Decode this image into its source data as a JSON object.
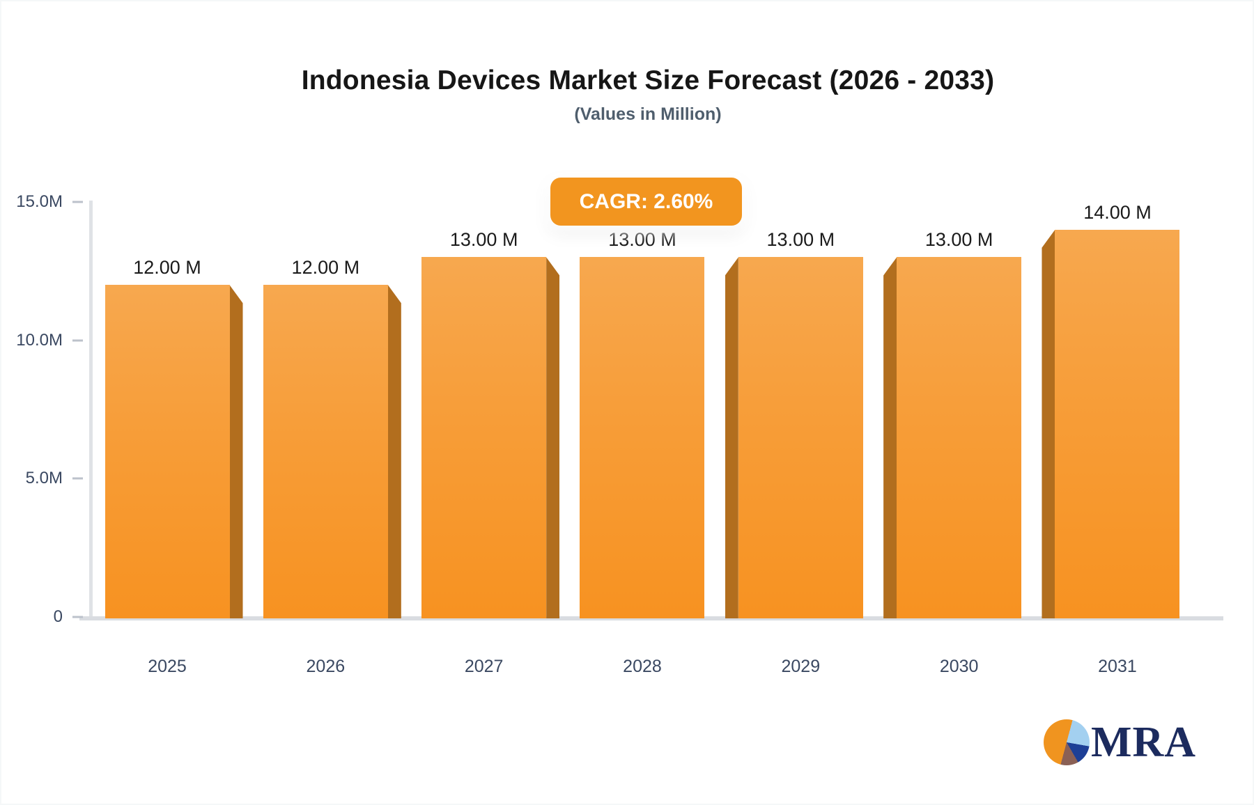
{
  "header": {
    "title": "Indonesia Devices Market Size Forecast (2026 - 2033)",
    "subtitle": "(Values in Million)",
    "cagr_badge": "CAGR: 2.60%"
  },
  "chart_data": {
    "type": "bar",
    "title": "Indonesia Devices Market Size Forecast (2026 - 2033)",
    "subtitle": "(Values in Million)",
    "cagr": "2.60%",
    "categories": [
      "2025",
      "2026",
      "2027",
      "2028",
      "2029",
      "2030",
      "2031"
    ],
    "values": [
      12,
      12,
      13,
      13,
      13,
      13,
      14
    ],
    "value_labels": [
      "12.00 M",
      "12.00 M",
      "13.00 M",
      "13.00 M",
      "13.00 M",
      "13.00 M",
      "14.00 M"
    ],
    "unit": "Million",
    "ylim": [
      0,
      15
    ],
    "yticks": [
      {
        "label": "15.0M",
        "value": 15
      },
      {
        "label": "10.0M",
        "value": 10
      },
      {
        "label": "5.0M",
        "value": 5
      },
      {
        "label": "0",
        "value": 0
      }
    ],
    "grid": false,
    "legend": null,
    "colors": {
      "bar_top": "#f7a84f",
      "bar_bottom": "#f79221",
      "bar_side": "#b26e1e",
      "badge_bg": "#f2951f",
      "axis": "#d9dce1",
      "tick_label": "#3a4861",
      "value_label": "#1a1a1a",
      "title": "#161616",
      "subtitle": "#4f5e6d"
    }
  },
  "logo": {
    "text": "MRA",
    "pie_colors": [
      "#f0941f",
      "#a3d0f0",
      "#1d3f96",
      "#8a6055"
    ]
  }
}
